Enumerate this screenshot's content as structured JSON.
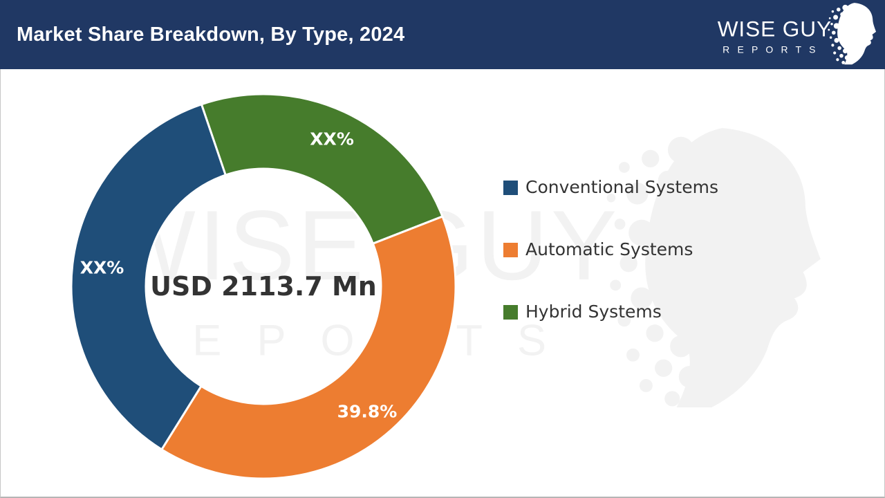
{
  "header": {
    "title": "Market Share Breakdown, By Type, 2024",
    "logo": {
      "line1": "WISE GUY",
      "line2": "R E P O R T S"
    }
  },
  "chart_data": {
    "type": "pie",
    "subtype": "donut",
    "title": "Market Share Breakdown, By Type, 2024",
    "center_label": "USD 2113.7 Mn",
    "legend_position": "right",
    "start_angle_deg_cw_from_north": -18.8,
    "segments": [
      {
        "name": "Conventional Systems",
        "label": "XX%",
        "value_pct": 35.9,
        "color": "#1f4e79"
      },
      {
        "name": "Automatic Systems",
        "label": "39.8%",
        "value_pct": 39.8,
        "color": "#ed7d31"
      },
      {
        "name": "Hybrid Systems",
        "label": "XX%",
        "value_pct": 24.3,
        "color": "#467c2c"
      }
    ]
  },
  "watermark": {
    "line1": "WISE GUY",
    "line2": "R E P O R T S"
  },
  "colors": {
    "header_bg": "#203864",
    "page_bg": "#ffffff",
    "text_dark": "#333333",
    "slice_label_text": "#ffffff",
    "separator": "#ffffff",
    "watermark": "#f2f2f2",
    "frame_border": "#c6c6c6"
  }
}
